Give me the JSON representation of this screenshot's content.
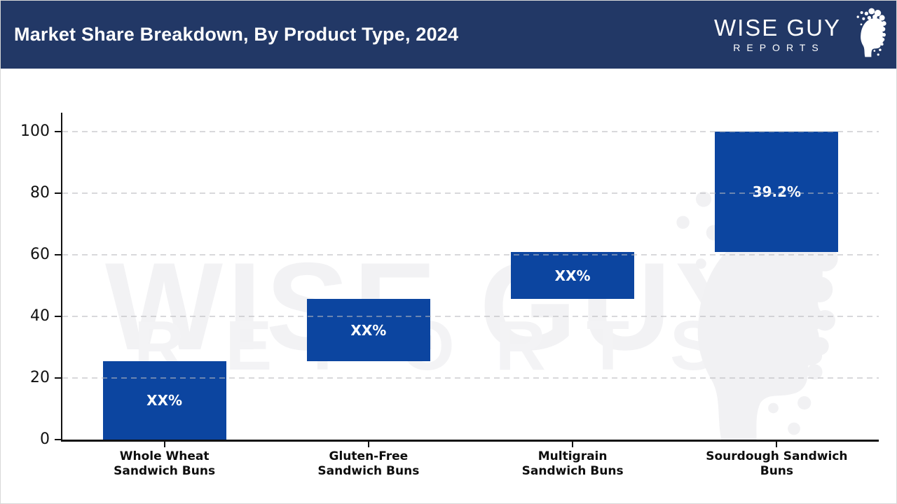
{
  "header": {
    "title": "Market Share Breakdown, By Product Type, 2024",
    "logo": {
      "line1": "WISE GUY",
      "line2": "REPORTS"
    }
  },
  "watermark": {
    "line1": "WISE GUY",
    "line2": "REPORTS"
  },
  "colors": {
    "header_bg": "#223866",
    "bar": "#0c45a0",
    "grid": "#e0e0e0",
    "axis": "#111111",
    "bar_label": "#ffffff",
    "watermark": "#f1f1f3",
    "page_border": "#d8d8d8"
  },
  "chart_data": {
    "type": "bar",
    "subtype": "waterfall",
    "title": "Market Share Breakdown, By Product Type, 2024",
    "categories": [
      [
        "Whole Wheat",
        "Sandwich Buns"
      ],
      [
        "Gluten-Free",
        "Sandwich Buns"
      ],
      [
        "Multigrain",
        "Sandwich Buns"
      ],
      [
        "Sourdough Sandwich",
        "Buns"
      ]
    ],
    "segments": [
      {
        "start": 0,
        "end": 25.4,
        "label": "XX%"
      },
      {
        "start": 25.4,
        "end": 45.6,
        "label": "XX%"
      },
      {
        "start": 45.6,
        "end": 60.8,
        "label": "XX%"
      },
      {
        "start": 60.8,
        "end": 100,
        "label": "39.2%"
      }
    ],
    "yticks": [
      0,
      20,
      40,
      60,
      80,
      100
    ],
    "ylim": [
      0,
      106
    ],
    "xlabel": "",
    "ylabel": "",
    "grid": "horizontal-dashed",
    "legend": "none",
    "bar_color": "#0c45a0"
  }
}
